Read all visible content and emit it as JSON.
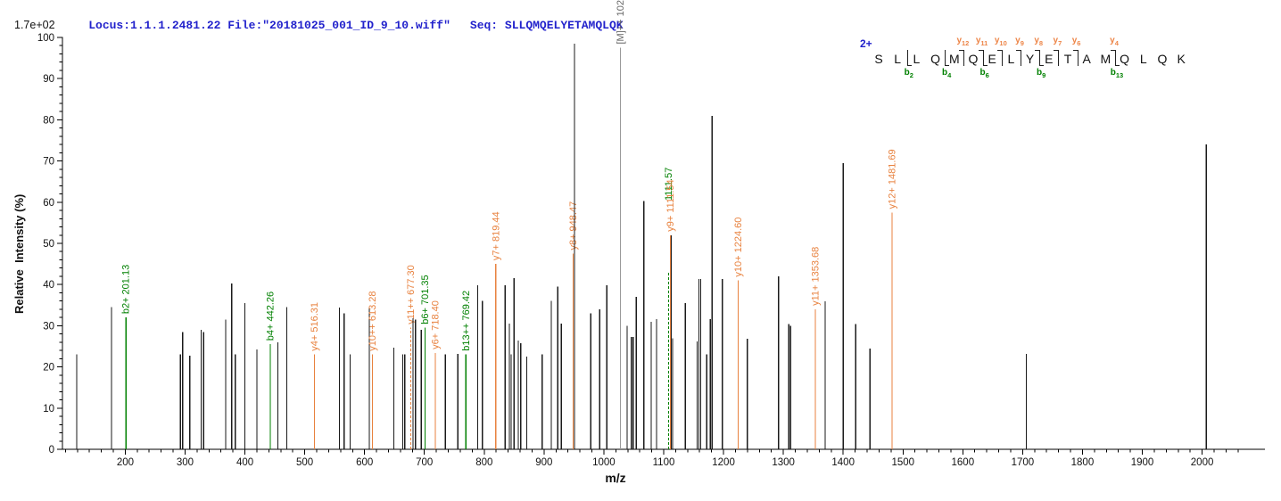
{
  "header": {
    "locus_file": "Locus:1.1.1.2481.22 File:\"20181025_001_ID_9_10.wiff\"",
    "seq_label": "Seq:",
    "sequence": "SLLQMQELYETAMQLQK"
  },
  "colors": {
    "header_blue": "#2222cc",
    "ion_b_green": "#008000",
    "ion_y_orange": "#e8823f",
    "precursor_gray": "#999999",
    "peak_black": "#1a1a1a"
  },
  "sequence_panel": {
    "charge_label": "2+",
    "residues": [
      "S",
      "L",
      "L",
      "Q",
      "M",
      "Q",
      "E",
      "L",
      "Y",
      "E",
      "T",
      "A",
      "M",
      "Q",
      "L",
      "Q",
      "K"
    ],
    "cuts": [
      {
        "after": 2,
        "b": "b2"
      },
      {
        "after": 4,
        "b": "b4"
      },
      {
        "after": 5,
        "y": "y12"
      },
      {
        "after": 6,
        "y": "y11",
        "b": "b6"
      },
      {
        "after": 7,
        "y": "y10"
      },
      {
        "after": 8,
        "y": "y9"
      },
      {
        "after": 9,
        "y": "y8",
        "b": "b9"
      },
      {
        "after": 10,
        "y": "y7"
      },
      {
        "after": 11,
        "y": "y6"
      },
      {
        "after": 13,
        "y": "y4",
        "b": "b13"
      }
    ]
  },
  "chart_data": {
    "type": "bar",
    "subtype": "ms2-stick-spectrum",
    "title": "",
    "xlabel": "m/z",
    "ylabel": "Relative  Intensity (%)",
    "y_scale_annotation": "1.7e+02",
    "xlim": [
      95,
      2105
    ],
    "ylim": [
      0,
      100
    ],
    "x_major_ticks": [
      200,
      300,
      400,
      500,
      600,
      700,
      800,
      900,
      1000,
      1100,
      1200,
      1300,
      1400,
      1500,
      1600,
      1700,
      1800,
      1900,
      2000
    ],
    "x_minor_step": 20,
    "y_major_ticks": [
      0,
      10,
      20,
      30,
      40,
      50,
      60,
      70,
      80,
      90,
      100
    ],
    "y_minor_step": 2,
    "grid": false,
    "legend": "none",
    "peaks": [
      {
        "mz": 119,
        "i": 23
      },
      {
        "mz": 177,
        "i": 34.5
      },
      {
        "mz": 201.13,
        "i": 32,
        "color": "green",
        "label": "b2+ 201.13"
      },
      {
        "mz": 292,
        "i": 23
      },
      {
        "mz": 296,
        "i": 28.5
      },
      {
        "mz": 308,
        "i": 22.7
      },
      {
        "mz": 327,
        "i": 29
      },
      {
        "mz": 331,
        "i": 28.5
      },
      {
        "mz": 368,
        "i": 31.5
      },
      {
        "mz": 378,
        "i": 40.3
      },
      {
        "mz": 384,
        "i": 23
      },
      {
        "mz": 400,
        "i": 35.5
      },
      {
        "mz": 420,
        "i": 24.2
      },
      {
        "mz": 442.26,
        "i": 25.5,
        "color": "green",
        "label": "b4+ 442.26"
      },
      {
        "mz": 455,
        "i": 26
      },
      {
        "mz": 470,
        "i": 34.5
      },
      {
        "mz": 516.31,
        "i": 23,
        "color": "orange",
        "label": "y4+ 516.31"
      },
      {
        "mz": 558,
        "i": 34.4
      },
      {
        "mz": 566,
        "i": 33
      },
      {
        "mz": 576,
        "i": 23
      },
      {
        "mz": 608,
        "i": 34.4
      },
      {
        "mz": 613.28,
        "i": 23,
        "color": "orange",
        "label": "y10++ 613.28"
      },
      {
        "mz": 649,
        "i": 24.7
      },
      {
        "mz": 664,
        "i": 23
      },
      {
        "mz": 667,
        "i": 23
      },
      {
        "mz": 677.3,
        "i": 29.5,
        "color": "orange",
        "label": "y11++ 677.30",
        "dashed": true
      },
      {
        "mz": 681,
        "i": 31.8
      },
      {
        "mz": 685,
        "i": 31.5
      },
      {
        "mz": 695,
        "i": 29
      },
      {
        "mz": 701.35,
        "i": 29.5,
        "color": "green",
        "label": "b6+ 701.35"
      },
      {
        "mz": 718.4,
        "i": 23.4,
        "color": "orange",
        "label": "y6+ 718.40"
      },
      {
        "mz": 735,
        "i": 23
      },
      {
        "mz": 756,
        "i": 23.2
      },
      {
        "mz": 769.42,
        "i": 23,
        "color": "green",
        "label": "b13++ 769.42"
      },
      {
        "mz": 789,
        "i": 39.8
      },
      {
        "mz": 797,
        "i": 36
      },
      {
        "mz": 819.44,
        "i": 45,
        "color": "orange",
        "label": "y7+ 819.44"
      },
      {
        "mz": 835,
        "i": 39.8
      },
      {
        "mz": 842,
        "i": 30.5
      },
      {
        "mz": 845,
        "i": 23
      },
      {
        "mz": 850,
        "i": 41.6
      },
      {
        "mz": 857,
        "i": 26.4
      },
      {
        "mz": 861,
        "i": 25.8
      },
      {
        "mz": 871,
        "i": 22.5
      },
      {
        "mz": 897,
        "i": 23
      },
      {
        "mz": 912,
        "i": 36
      },
      {
        "mz": 923,
        "i": 39.5
      },
      {
        "mz": 929,
        "i": 30.5
      },
      {
        "mz": 948.47,
        "i": 47.5,
        "color": "orange",
        "label": "y8+ 948.47"
      },
      {
        "mz": 951,
        "i": 98.5
      },
      {
        "mz": 978,
        "i": 33
      },
      {
        "mz": 993,
        "i": 34
      },
      {
        "mz": 1005,
        "i": 39.8
      },
      {
        "mz": 1027.5,
        "i": 97.5,
        "color": "gray",
        "label": "[M]++ 102"
      },
      {
        "mz": 1039,
        "i": 30
      },
      {
        "mz": 1046,
        "i": 27.3
      },
      {
        "mz": 1049,
        "i": 27.3
      },
      {
        "mz": 1054,
        "i": 37
      },
      {
        "mz": 1067,
        "i": 60.3
      },
      {
        "mz": 1079,
        "i": 31
      },
      {
        "mz": 1088,
        "i": 31.6
      },
      {
        "mz": 1108,
        "i": 43,
        "color": "green",
        "label": "1111.57",
        "dashed": true,
        "label_y": 225
      },
      {
        "mz": 1111.54,
        "i": 52,
        "color": "orange",
        "label": "y9+ 1111.54"
      },
      {
        "mz": 1112.8,
        "i": 52
      },
      {
        "mz": 1115,
        "i": 27
      },
      {
        "mz": 1136,
        "i": 35.5
      },
      {
        "mz": 1156,
        "i": 26.2
      },
      {
        "mz": 1159,
        "i": 41.3
      },
      {
        "mz": 1162,
        "i": 41.3
      },
      {
        "mz": 1172,
        "i": 23
      },
      {
        "mz": 1178,
        "i": 31.6
      },
      {
        "mz": 1181,
        "i": 81
      },
      {
        "mz": 1198,
        "i": 41.3
      },
      {
        "mz": 1224.6,
        "i": 41,
        "color": "orange",
        "label": "y10+ 1224.60"
      },
      {
        "mz": 1240,
        "i": 26.8
      },
      {
        "mz": 1292,
        "i": 42
      },
      {
        "mz": 1309,
        "i": 30.4
      },
      {
        "mz": 1312,
        "i": 30
      },
      {
        "mz": 1353.68,
        "i": 34,
        "color": "orange",
        "label": "y11+ 1353.68"
      },
      {
        "mz": 1370,
        "i": 35.9
      },
      {
        "mz": 1400,
        "i": 69.5
      },
      {
        "mz": 1421,
        "i": 30.4
      },
      {
        "mz": 1445,
        "i": 24.5
      },
      {
        "mz": 1481.69,
        "i": 57.5,
        "color": "orange",
        "label": "y12+ 1481.69"
      },
      {
        "mz": 1706,
        "i": 23.2
      },
      {
        "mz": 2007,
        "i": 74
      }
    ]
  }
}
